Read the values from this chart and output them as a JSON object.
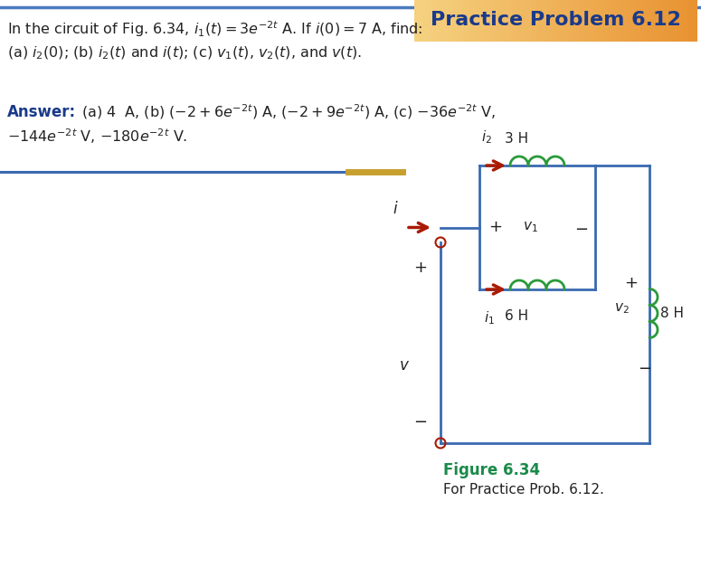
{
  "title": "Practice Problem 6.12",
  "title_bg_left": "#F5D080",
  "title_bg_right": "#E89030",
  "title_text_color": "#1a3a8a",
  "problem_text_line1": "In the circuit of Fig. 6.34, $i_1(t) = 3e^{-2t}$ A. If $i(0) = 7$ A, find:",
  "problem_text_line2": "(a) $i_2(0)$; (b) $i_2(t)$ and $i(t)$; (c) $v_1(t)$, $v_2(t)$, and $v(t)$.",
  "answer_label": "Answer:",
  "answer_text_line1": "(a) 4  A, (b) $(-2 + 6e^{-2t})$ A, $(-2 + 9e^{-2t})$ A, (c) $-36e^{-2t}$ V,",
  "answer_text_line2": "$-144e^{-2t}$ V, $-180e^{-2t}$ V.",
  "answer_color": "#1a3a8a",
  "fig_label": "Figure 6.34",
  "fig_caption": "For Practice Prob. 6.12.",
  "fig_label_color": "#1a8a4a",
  "circuit_wire_color": "#3a6ab0",
  "inductor_color": "#2a9a3a",
  "arrow_color": "#aa1a00",
  "text_color": "#222222",
  "bg_color": "#ffffff",
  "divider_color_gold": "#c8a030",
  "divider_color_blue": "#3a6ab0",
  "top_line_color": "#4a7abf"
}
